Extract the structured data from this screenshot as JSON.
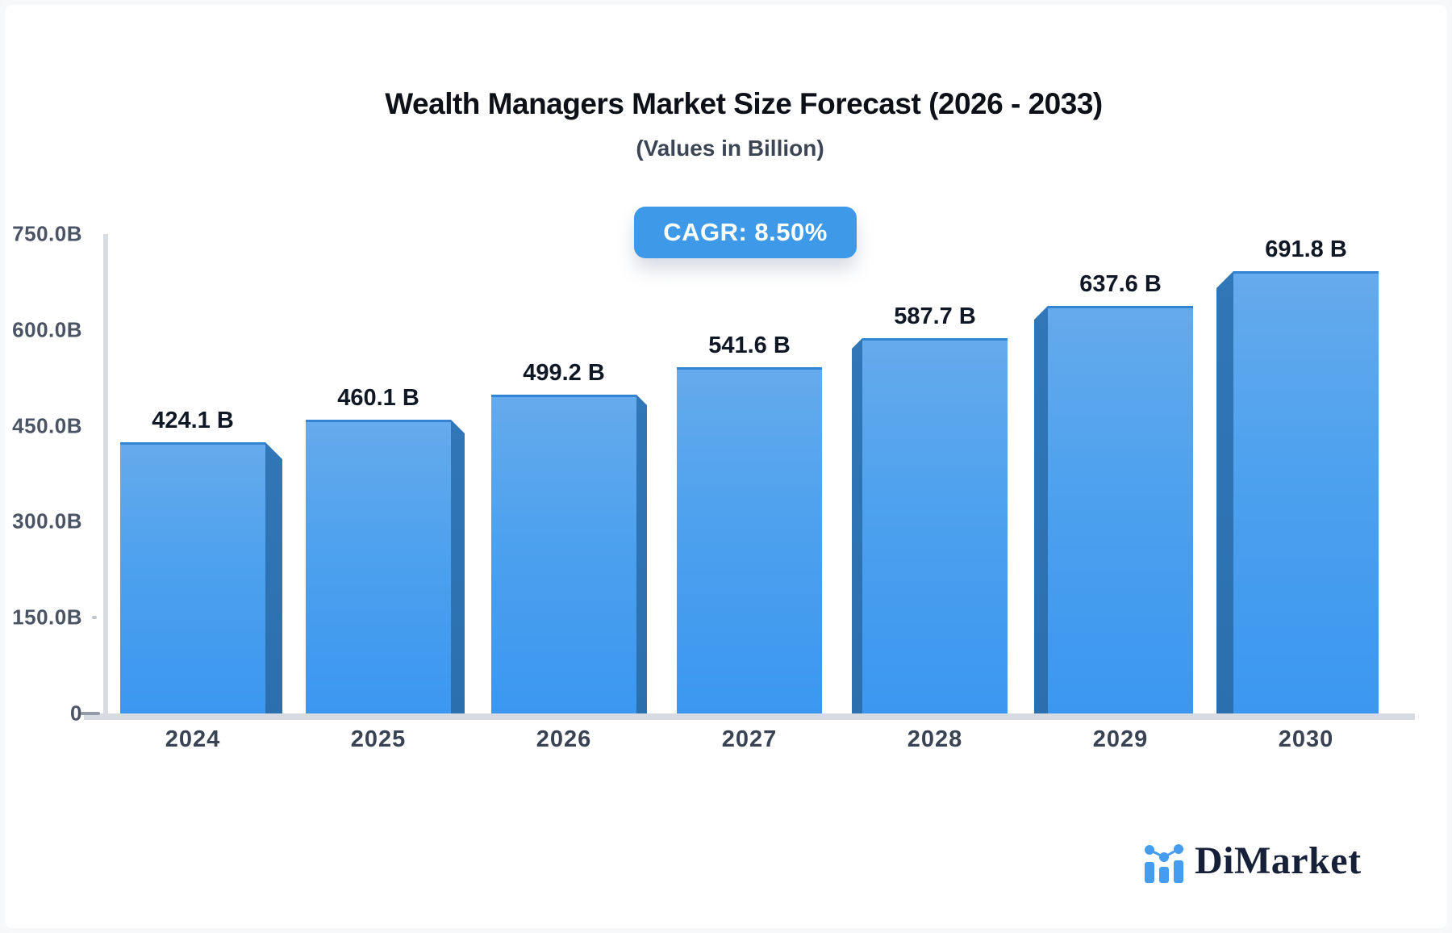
{
  "header": {
    "title": "Wealth Managers Market Size Forecast (2026 - 2033)",
    "subtitle": "(Values in Billion)",
    "cagr_badge": "CAGR: 8.50%"
  },
  "chart_data": {
    "type": "bar",
    "categories": [
      "2024",
      "2025",
      "2026",
      "2027",
      "2028",
      "2029",
      "2030"
    ],
    "values": [
      424.1,
      460.1,
      499.2,
      541.6,
      587.7,
      637.6,
      691.8
    ],
    "value_labels": [
      "424.1 B",
      "460.1 B",
      "499.2 B",
      "541.6 B",
      "587.7 B",
      "637.6 B",
      "691.8 B"
    ],
    "title": "Wealth Managers Market Size Forecast (2026 - 2033)",
    "subtitle": "(Values in Billion)",
    "xlabel": "",
    "ylabel": "",
    "ylim": [
      0,
      750
    ],
    "yticks": [
      {
        "label": "750.0B",
        "value": 750
      },
      {
        "label": "600.0B",
        "value": 600
      },
      {
        "label": "450.0B",
        "value": 450
      },
      {
        "label": "300.0B",
        "value": 300
      },
      {
        "label": "150.0B",
        "value": 150
      },
      {
        "label": "0",
        "value": 0
      }
    ],
    "grid": false,
    "legend": "none",
    "style": "3d-perspective-bars"
  },
  "colors": {
    "bar_face_top": "#65aaec",
    "bar_face_bottom": "#3b97f0",
    "bar_side": "#2d72b3",
    "badge_bg": "#3e9ae9",
    "badge_text": "#ffffff",
    "axis_line": "#d9dce1",
    "baseline": "#d8dce2",
    "title_text": "#0d1117",
    "subtitle_text": "#3c4554",
    "ytick_text": "#4a5464",
    "xtick_text": "#3a4354",
    "logo_text": "#162139",
    "logo_blue": "#459df2"
  },
  "logo": {
    "text": "DiMarket",
    "icon": "mini-bar-chart-with-dots-icon"
  }
}
